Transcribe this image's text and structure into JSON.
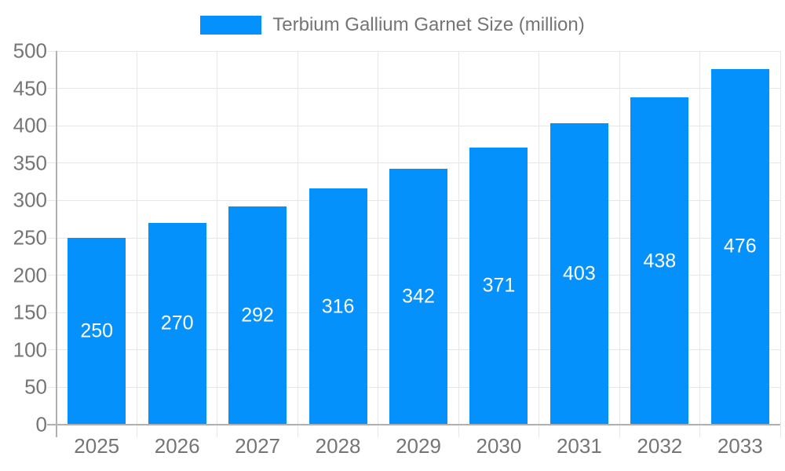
{
  "chart_data": {
    "type": "bar",
    "title": "Terbium Gallium Garnet Size (million)",
    "categories": [
      "2025",
      "2026",
      "2027",
      "2028",
      "2029",
      "2030",
      "2031",
      "2032",
      "2033"
    ],
    "values": [
      250,
      270,
      292,
      316,
      342,
      371,
      403,
      438,
      476
    ],
    "xlabel": "",
    "ylabel": "",
    "ylim": [
      0,
      500
    ],
    "yticks": [
      0,
      50,
      100,
      150,
      200,
      250,
      300,
      350,
      400,
      450,
      500
    ],
    "grid": true,
    "legend_position": "top",
    "colors": {
      "bar": "#0591fb",
      "bar_value_text": "#ffffff",
      "axis_text": "#757575",
      "legend_text": "#757575",
      "gridline": "#e7e7e7",
      "axis_line": "#b0b0b0",
      "background": "#ffffff"
    }
  }
}
